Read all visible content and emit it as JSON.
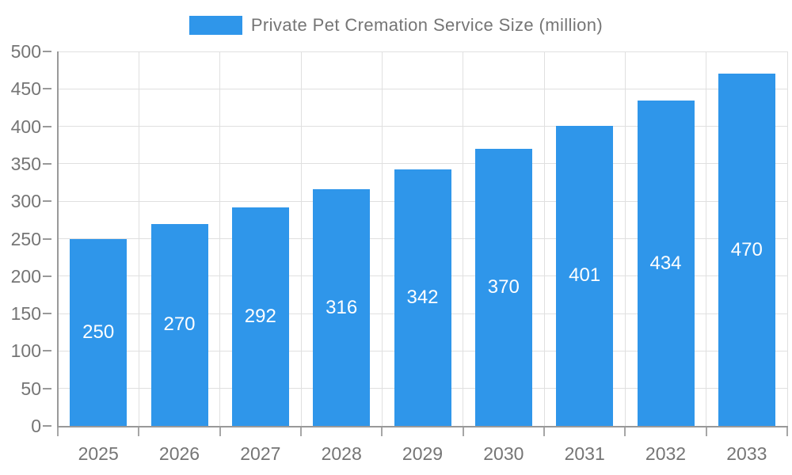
{
  "chart_data": {
    "type": "bar",
    "title": "Private Pet Cremation Service Size (million)",
    "series_name": "Private Pet Cremation Service Size (million)",
    "categories": [
      "2025",
      "2026",
      "2027",
      "2028",
      "2029",
      "2030",
      "2031",
      "2032",
      "2033"
    ],
    "values": [
      250,
      270,
      292,
      316,
      342,
      370,
      401,
      434,
      470
    ],
    "xlabel": "",
    "ylabel": "",
    "ylim": [
      0,
      500
    ],
    "ytick_step": 50,
    "ytick_labels": [
      "0",
      "50",
      "100",
      "150",
      "200",
      "250",
      "300",
      "350",
      "400",
      "450",
      "500"
    ],
    "grid": true,
    "legend_position": "top-center",
    "value_label_position": "inside-center",
    "colors": {
      "bar": "#2F96EA",
      "value_label": "#FFFFFF",
      "axis_label": "#757575",
      "axis_line": "#999999",
      "tick": "#A6A6A6",
      "gridline": "#E0E0E0",
      "background": "#FFFFFF"
    }
  }
}
